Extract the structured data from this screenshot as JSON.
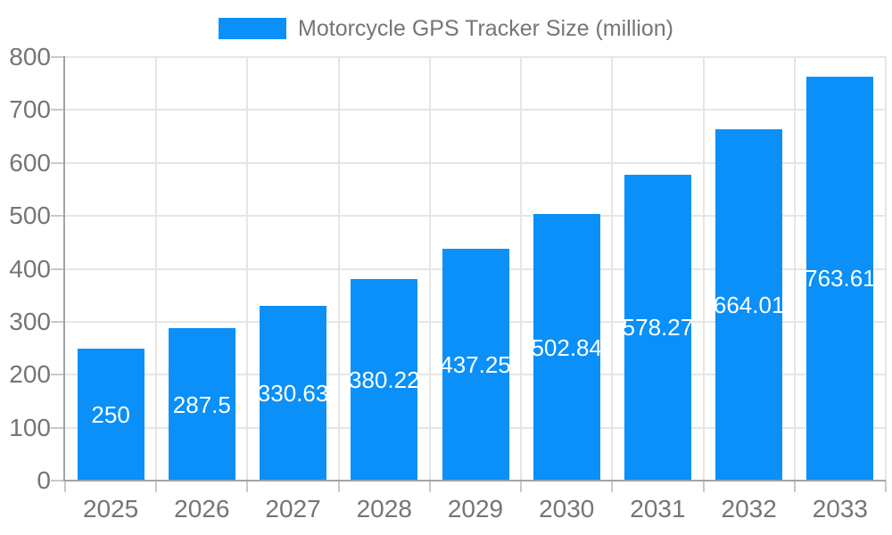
{
  "chart_data": {
    "type": "bar",
    "title": "Motorcycle GPS Tracker Size (million)",
    "categories": [
      "2025",
      "2026",
      "2027",
      "2028",
      "2029",
      "2030",
      "2031",
      "2032",
      "2033"
    ],
    "series": [
      {
        "name": "Motorcycle GPS Tracker Size (million)",
        "values": [
          250,
          287.5,
          330.63,
          380.22,
          437.25,
          502.84,
          578.27,
          664.01,
          763.61
        ],
        "labels": [
          "250",
          "287.5",
          "330.63",
          "380.22",
          "437.25",
          "502.84",
          "578.27",
          "664.01",
          "763.61"
        ]
      }
    ],
    "xlabel": "",
    "ylabel": "",
    "ylim": [
      0,
      800
    ],
    "yticks": [
      0,
      100,
      200,
      300,
      400,
      500,
      600,
      700,
      800
    ],
    "grid": true,
    "legend_position": "top",
    "value_label_position": "center"
  },
  "colors": {
    "bar": "#0a90f8",
    "axis_text": "#757575",
    "value_label": "#ffffff",
    "grid_line": "#e6e6e6",
    "tick_mark": "#c9c9c9",
    "axis_line": "#a3a3a3",
    "background": "#ffffff"
  }
}
